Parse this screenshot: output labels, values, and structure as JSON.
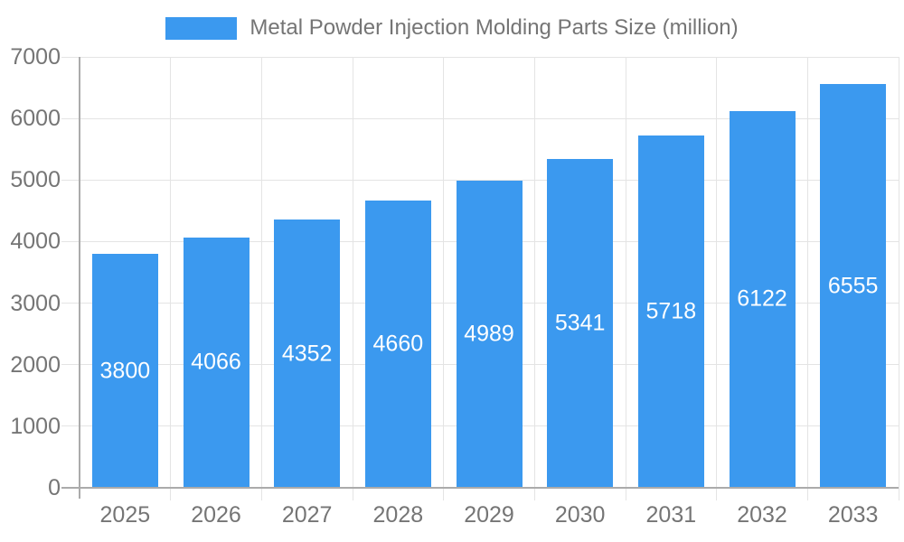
{
  "chart_data": {
    "type": "bar",
    "title": "Metal Powder Injection Molding Parts Size (million)",
    "legend": [
      "Metal Powder Injection Molding Parts Size (million)"
    ],
    "legend_position": "top",
    "categories": [
      "2025",
      "2026",
      "2027",
      "2028",
      "2029",
      "2030",
      "2031",
      "2032",
      "2033"
    ],
    "series": [
      {
        "name": "Metal Powder Injection Molding Parts Size (million)",
        "values": [
          3800,
          4066,
          4352,
          4660,
          4989,
          5341,
          5718,
          6122,
          6555
        ]
      }
    ],
    "values": [
      3800,
      4066,
      4352,
      4660,
      4989,
      5341,
      5718,
      6122,
      6555
    ],
    "value_labels_shown": true,
    "xlabel": "",
    "ylabel": "",
    "ylim": [
      0,
      7000
    ],
    "yticks": [
      0,
      1000,
      2000,
      3000,
      4000,
      5000,
      6000,
      7000
    ],
    "grid": true
  },
  "colors": {
    "bar": "#3B99EF",
    "axis_line": "#ABABAB",
    "gridline": "#E4E4E4",
    "text": "#757575",
    "value_label": "#FFFFFF",
    "background": "#FFFFFF"
  }
}
